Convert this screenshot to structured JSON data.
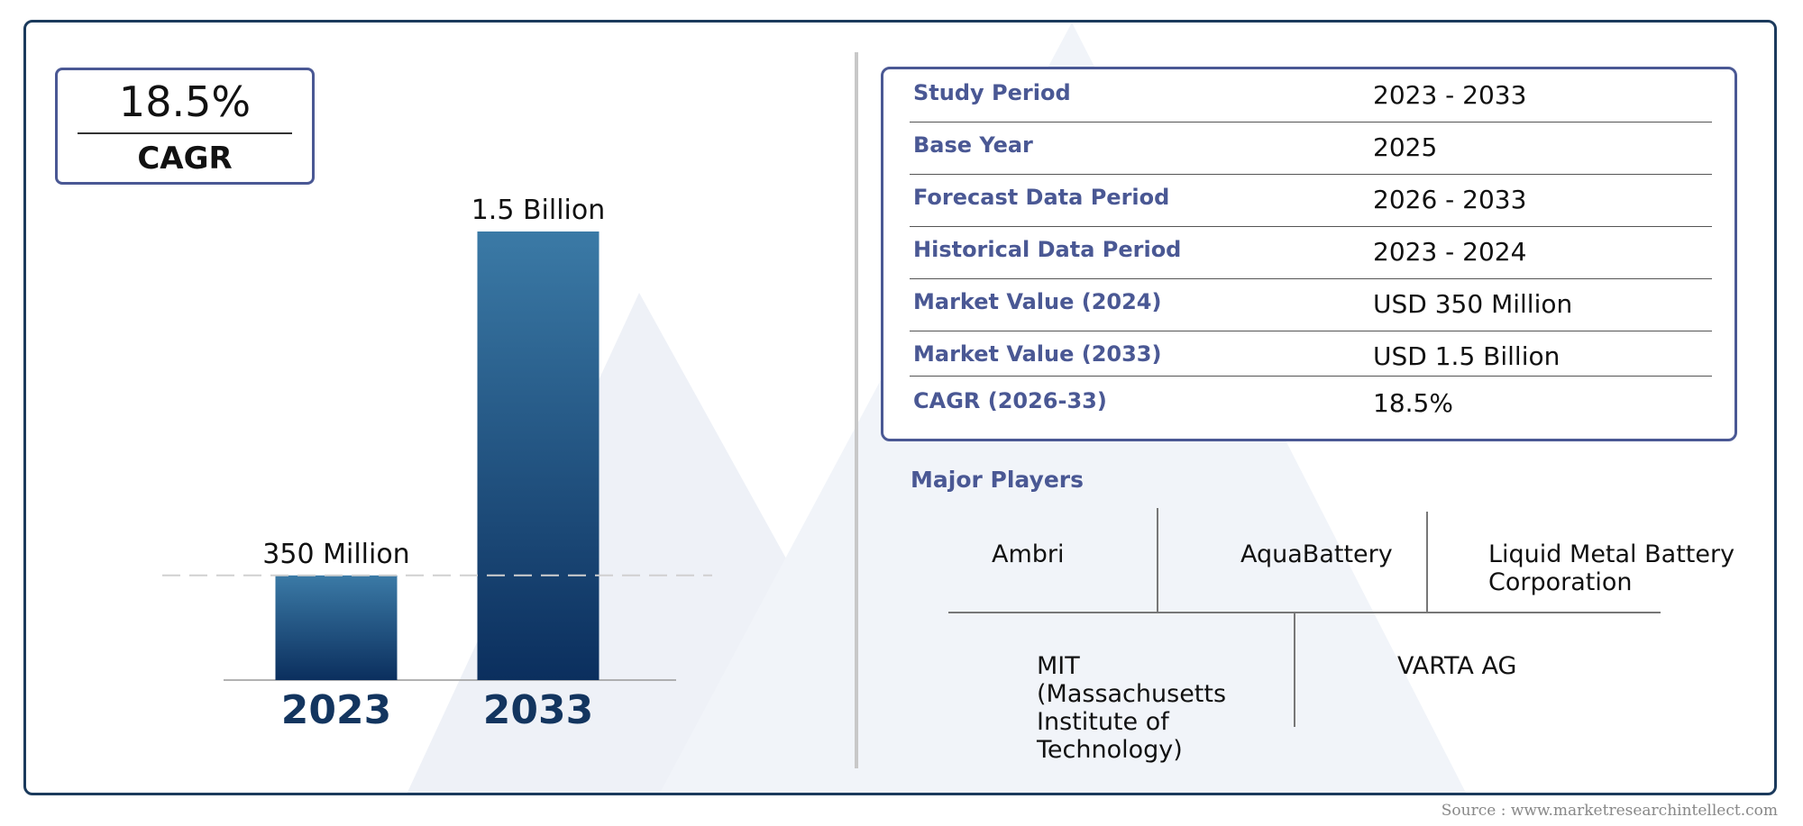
{
  "cagr": {
    "value": "18.5%",
    "label": "CAGR"
  },
  "chart_data": {
    "type": "bar",
    "categories": [
      "2023",
      "2033"
    ],
    "values": [
      350,
      1500
    ],
    "value_unit": "Million USD",
    "data_labels": [
      "350 Million",
      "1.5 Billion"
    ],
    "title": "",
    "xlabel": "",
    "ylabel": "",
    "ylim": [
      0,
      1500
    ],
    "grid": false,
    "reference_line": "dashed line at first bar value",
    "colors": {
      "bar_top": "#3b7aa6",
      "bar_bottom": "#0b2f5e",
      "category_label": "#13355f"
    }
  },
  "info_table": [
    {
      "label": "Study Period",
      "value": "2023 - 2033"
    },
    {
      "label": "Base Year",
      "value": "2025"
    },
    {
      "label": "Forecast Data Period",
      "value": "2026 - 2033"
    },
    {
      "label": "Historical Data Period",
      "value": "2023 - 2024"
    },
    {
      "label": "Market Value (2024)",
      "value": "USD 350 Million"
    },
    {
      "label": "Market Value (2033)",
      "value": "USD 1.5 Billion"
    },
    {
      "label": "CAGR (2026-33)",
      "value": "18.5%"
    }
  ],
  "major_players": {
    "title": "Major Players",
    "items": [
      "Ambri",
      "AquaBattery",
      "Liquid Metal Battery Corporation",
      "MIT (Massachusetts Institute of Technology)",
      "VARTA AG"
    ]
  },
  "source": "Source : www.marketresearchintellect.com",
  "colors": {
    "accent": "#4a5894",
    "frame": "#1b3a5c",
    "watermark": "#eef1f7"
  }
}
